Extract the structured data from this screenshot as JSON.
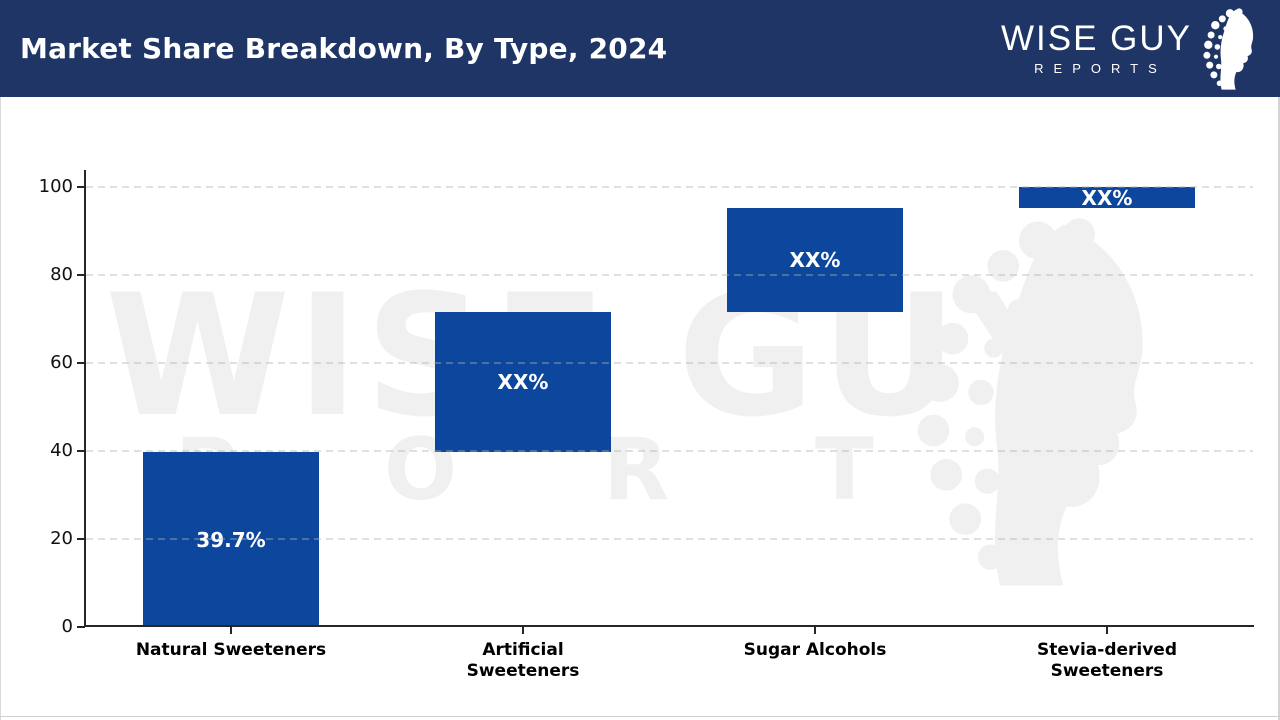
{
  "header": {
    "title": "Market Share Breakdown, By Type, 2024",
    "logo": {
      "line1": "WISE GUY",
      "line2": "REPORTS"
    }
  },
  "watermark": {
    "line1": "WISE GUY",
    "line2": "P O R T S"
  },
  "colors": {
    "header_bg": "#1f3566",
    "bar": "#0c479d",
    "axis": "#262626",
    "grid": "#c8c8c8",
    "bar_label": "#ffffff",
    "watermark": "#f0f0f0"
  },
  "chart_data": {
    "type": "bar",
    "subtype": "waterfall",
    "title": "Market Share Breakdown, By Type, 2024",
    "xlabel": "",
    "ylabel": "",
    "categories": [
      "Natural Sweeteners",
      "Artificial Sweeteners",
      "Sugar Alcohols",
      "Stevia-derived Sweeteners"
    ],
    "category_label_lines": [
      [
        "Natural Sweeteners"
      ],
      [
        "Artificial",
        "Sweeteners"
      ],
      [
        "Sugar Alcohols"
      ],
      [
        "Stevia-derived",
        "Sweeteners"
      ]
    ],
    "segments": [
      {
        "category": "Natural Sweeteners",
        "start": 0,
        "end": 39.7,
        "label": "39.7%"
      },
      {
        "category": "Artificial Sweeteners",
        "start": 39.7,
        "end": 71.5,
        "label": "XX%"
      },
      {
        "category": "Sugar Alcohols",
        "start": 71.5,
        "end": 95.2,
        "label": "XX%"
      },
      {
        "category": "Stevia-derived Sweeteners",
        "start": 95.2,
        "end": 100,
        "label": "XX%"
      }
    ],
    "yticks": [
      0,
      20,
      40,
      60,
      80,
      100
    ],
    "ytick_labels": [
      "0",
      "20",
      "40",
      "60",
      "80",
      "100"
    ],
    "ylim": [
      0,
      104
    ],
    "grid": "horizontal-dashed",
    "legend": "none",
    "bar_color": "#0c479d"
  }
}
